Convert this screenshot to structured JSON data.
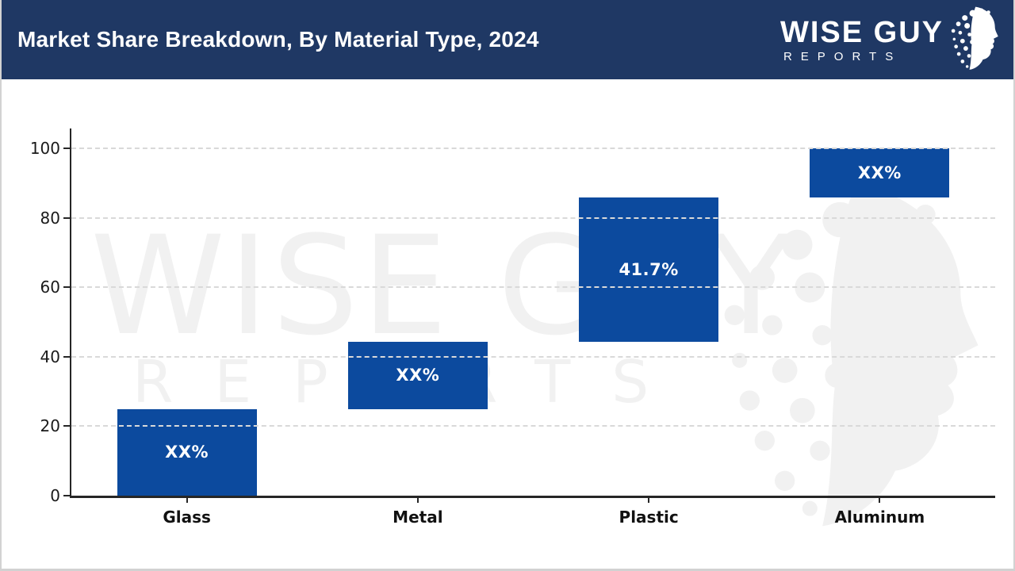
{
  "header": {
    "title": "Market Share Breakdown, By Material Type, 2024",
    "logo": {
      "wordmark": "WISE GUY",
      "subtitle": "REPORTS"
    }
  },
  "watermark": {
    "wordmark": "WISE GUY",
    "subtitle": "REPORTS"
  },
  "chart_data": {
    "type": "bar",
    "subtype": "waterfall-floating-bars",
    "title": "Market Share Breakdown, By Material Type, 2024",
    "categories": [
      "Glass",
      "Metal",
      "Plastic",
      "Aluminum"
    ],
    "bars": [
      {
        "category": "Glass",
        "start": 0,
        "end": 25,
        "label": "XX%"
      },
      {
        "category": "Metal",
        "start": 25,
        "end": 44.3,
        "label": "XX%"
      },
      {
        "category": "Plastic",
        "start": 44.3,
        "end": 86,
        "label": "41.7%"
      },
      {
        "category": "Aluminum",
        "start": 86,
        "end": 100,
        "label": "XX%"
      }
    ],
    "xlabel": "",
    "ylabel": "",
    "ylim": [
      0,
      100
    ],
    "yticks": [
      0,
      20,
      40,
      60,
      80,
      100
    ],
    "grid": "horizontal-dashed-over-bars",
    "legend": "none",
    "colors": {
      "bar": "#0c4a9e",
      "bar_label": "#ffffff",
      "header_bg": "#1f3864",
      "gridline": "#d9d9d9",
      "axis": "#262626",
      "watermark": "#f1f1f1"
    }
  }
}
